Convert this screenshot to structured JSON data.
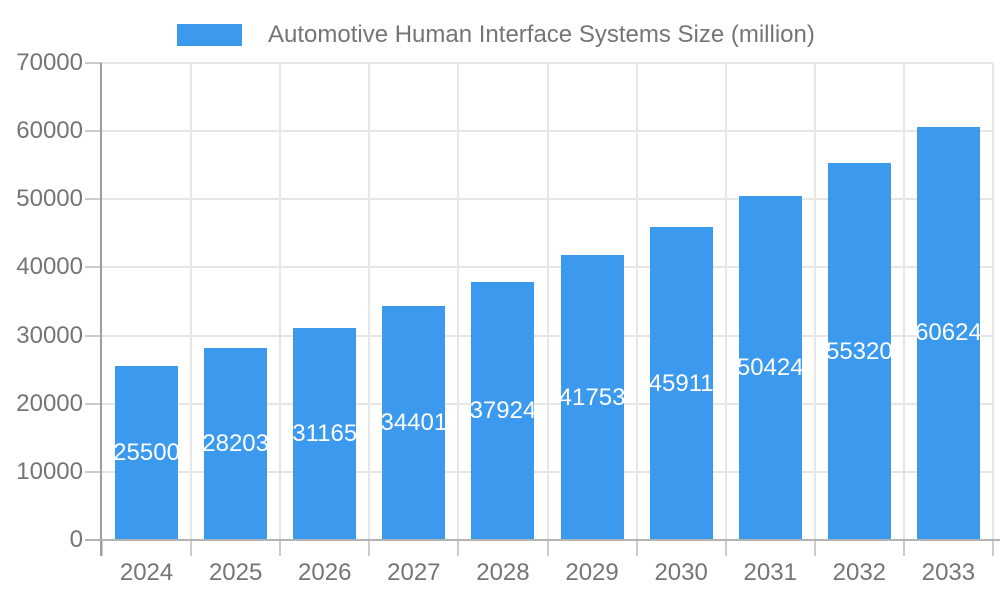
{
  "colors": {
    "bar": "#3B99EE",
    "grid": "#E6E6E6",
    "axis_y": "#9E9E9E",
    "axis_x": "#B3B3B3",
    "tick": "#CCCCCC",
    "text": "#757575",
    "bar_label": "#FFFFFF",
    "background": "#FFFFFF"
  },
  "chart_data": {
    "type": "bar",
    "legend": "Automotive Human Interface Systems Size (million)",
    "legend_position": "top",
    "categories": [
      "2024",
      "2025",
      "2026",
      "2027",
      "2028",
      "2029",
      "2030",
      "2031",
      "2032",
      "2033"
    ],
    "values": [
      25500,
      28203,
      31165,
      34401,
      37924,
      41753,
      45911,
      50424,
      55320,
      60624
    ],
    "series_name": "Automotive Human Interface Systems Size (million)",
    "xlabel": "",
    "ylabel": "",
    "ylim": [
      0,
      70000
    ],
    "ytick_step": 10000,
    "yticks": [
      0,
      10000,
      20000,
      30000,
      40000,
      50000,
      60000,
      70000
    ],
    "grid": "horizontal ticks + vertical category boundaries",
    "bar_value_labels": "white, centered inside bars"
  }
}
